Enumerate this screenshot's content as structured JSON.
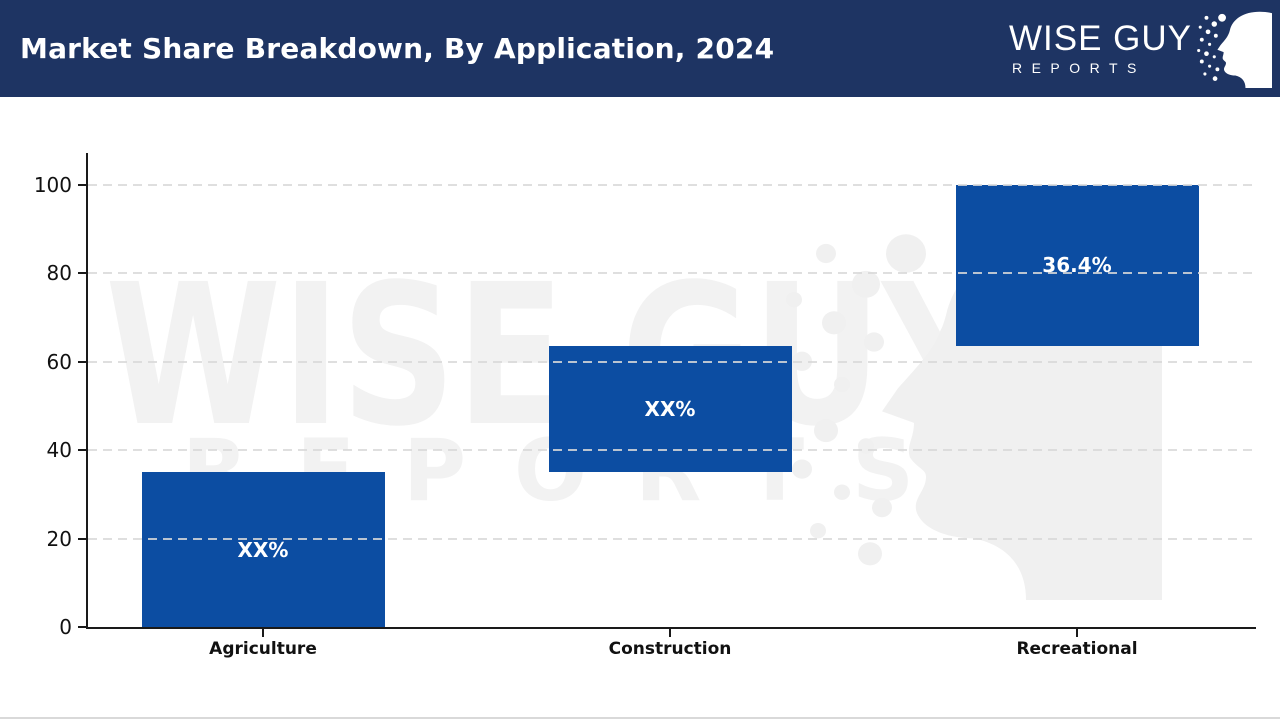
{
  "header": {
    "title": "Market Share Breakdown, By Application, 2024",
    "logo": {
      "line1": "WISE GUY",
      "line2": "REPORTS"
    }
  },
  "watermark": {
    "line1": "WISE GUY",
    "line2": "REPORTS"
  },
  "chart_data": {
    "type": "bar",
    "subtype": "waterfall",
    "title": "Market Share Breakdown, By Application, 2024",
    "categories": [
      "Agriculture",
      "Construction",
      "Recreational"
    ],
    "segments": [
      {
        "category": "Agriculture",
        "start": 0,
        "end": 35,
        "label": "XX%"
      },
      {
        "category": "Construction",
        "start": 35,
        "end": 63.6,
        "label": "XX%"
      },
      {
        "category": "Recreational",
        "start": 63.6,
        "end": 100,
        "label": "36.4%"
      }
    ],
    "yticks": [
      0,
      20,
      40,
      60,
      80,
      100
    ],
    "ylim": [
      0,
      107
    ],
    "xlabel": "",
    "ylabel": "",
    "legend": "none",
    "grid": "horizontal-dashed",
    "bar_color": "#0c4da2",
    "bar_label_color": "#ffffff",
    "axis_color": "#1a1a1a",
    "grid_color": "#d9d9d9",
    "header_bg": "#1e3463"
  }
}
